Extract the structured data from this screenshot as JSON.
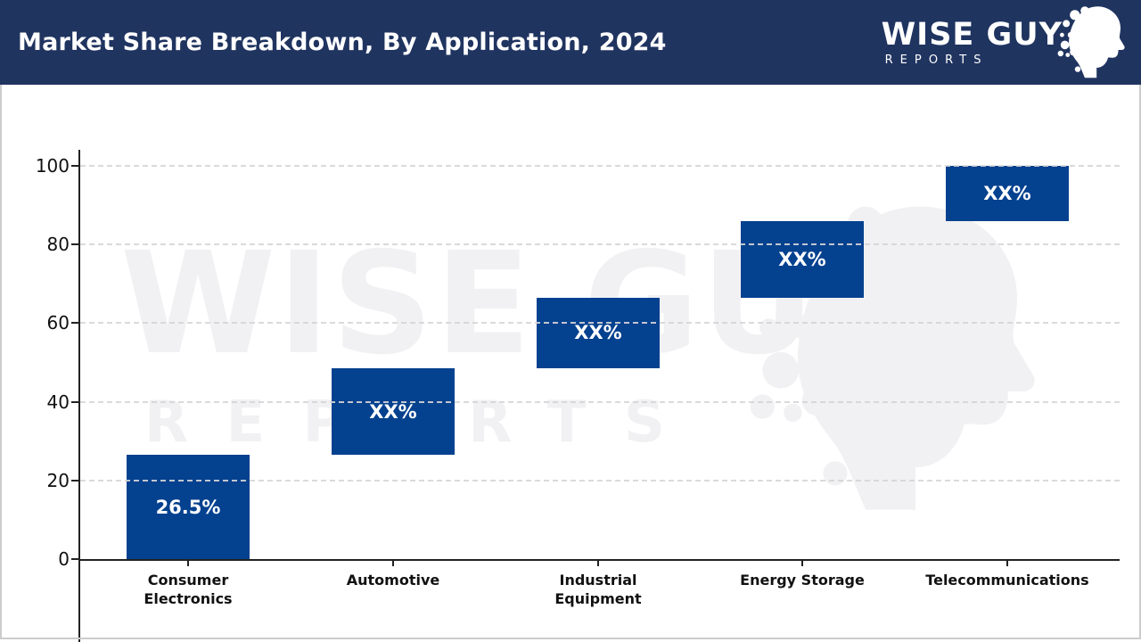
{
  "header": {
    "title": "Market Share Breakdown, By Application, 2024",
    "logo": {
      "primary": "WISE GUY",
      "secondary": "REPORTS"
    }
  },
  "watermark": {
    "line1": "WISE GUY",
    "line2": "REPORTS"
  },
  "colors": {
    "header_bg": "#203460",
    "bar": "#04418f",
    "grid": "#d6d6d8",
    "axis": "#222222",
    "tick_text": "#111111",
    "watermark": "#f1f1f3",
    "border": "#cccccc"
  },
  "chart_data": {
    "type": "bar",
    "subtype": "waterfall",
    "title": "Market Share Breakdown, By Application, 2024",
    "categories": [
      "Consumer Electronics",
      "Automotive",
      "Industrial Equipment",
      "Energy Storage",
      "Telecommunications"
    ],
    "category_label_lines": [
      [
        "Consumer",
        "Electronics"
      ],
      [
        "Automotive"
      ],
      [
        "Industrial",
        "Equipment"
      ],
      [
        "Energy Storage"
      ],
      [
        "Telecommunications"
      ]
    ],
    "segments": [
      {
        "category": "Consumer Electronics",
        "start": 0,
        "end": 26.5,
        "label": "26.5%"
      },
      {
        "category": "Automotive",
        "start": 26.5,
        "end": 48.5,
        "label": "XX%"
      },
      {
        "category": "Industrial Equipment",
        "start": 48.5,
        "end": 66.5,
        "label": "XX%"
      },
      {
        "category": "Energy Storage",
        "start": 66.5,
        "end": 86,
        "label": "XX%"
      },
      {
        "category": "Telecommunications",
        "start": 86,
        "end": 100,
        "label": "XX%"
      }
    ],
    "yticks": [
      0,
      20,
      40,
      60,
      80,
      100
    ],
    "ylim": [
      0,
      105
    ],
    "xlabel": "",
    "ylabel": "",
    "grid": "dashed horizontal",
    "legend": "none"
  }
}
